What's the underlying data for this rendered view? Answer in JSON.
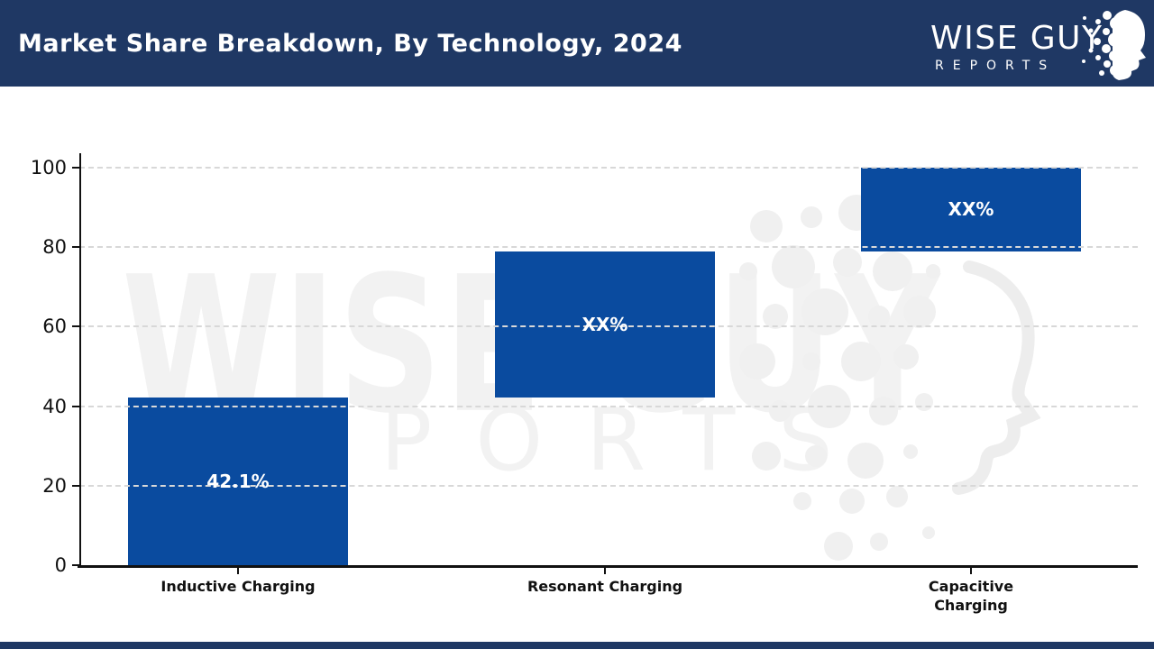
{
  "header": {
    "title": "Market Share Breakdown, By Technology, 2024",
    "bg_color": "#1f3864",
    "logo": {
      "line1": "WISE GUY",
      "line2": "REPORTS"
    }
  },
  "watermark": {
    "line1": "WISE GUY",
    "line2": "REPORTS"
  },
  "chart_data": {
    "type": "bar",
    "subtype": "waterfall",
    "title": "Market Share Breakdown, By Technology, 2024",
    "categories": [
      "Inductive Charging",
      "Resonant Charging",
      "Capacitive\nCharging"
    ],
    "segments": [
      {
        "category": "Inductive Charging",
        "start": 0,
        "end": 42.1,
        "label": "42.1%"
      },
      {
        "category": "Resonant Charging",
        "start": 42.1,
        "end": 79.0,
        "label": "XX%"
      },
      {
        "category": "Capacitive\nCharging",
        "start": 79.0,
        "end": 100.0,
        "label": "XX%"
      }
    ],
    "y_ticks": [
      0,
      20,
      40,
      60,
      80,
      100
    ],
    "ylim": [
      0,
      103.6
    ],
    "bar_color": "#0a4b9f",
    "grid": "horizontal-dashed",
    "gridline_color": "#d8d8d8",
    "legend": "none"
  }
}
